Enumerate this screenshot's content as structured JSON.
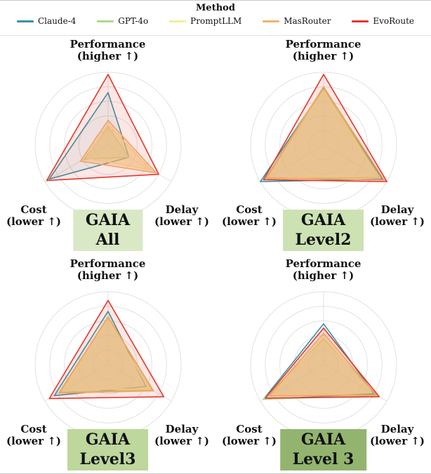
{
  "legend": {
    "title": "Method",
    "items": [
      {
        "label": "Claude-4",
        "color": "#3a93a5",
        "fill": "rgba(58,147,165,0.08)"
      },
      {
        "label": "GPT-4o",
        "color": "#b2d88b",
        "fill": "rgba(178,216,139,0.30)"
      },
      {
        "label": "PromptLLM",
        "color": "#f6ec9a",
        "fill": "rgba(246,236,154,0.40)"
      },
      {
        "label": "MasRouter",
        "color": "#f4b269",
        "fill": "rgba(244,178,105,0.35)"
      },
      {
        "label": "EvoRoute",
        "color": "#e6372c",
        "fill": "rgba(230,55,44,0.12)"
      }
    ]
  },
  "axis_labels": {
    "performance": {
      "line1": "Performance",
      "line2": "(higher ↑)"
    },
    "cost": {
      "line1": "Cost",
      "line2": "(lower ↑)"
    },
    "delay": {
      "line1": "Delay",
      "line2": "(lower ↑)"
    }
  },
  "charts": [
    {
      "title_line1": "GAIA",
      "title_line2": "All",
      "box_color": "#d9e8c5"
    },
    {
      "title_line1": "GAIA",
      "title_line2": "Level2",
      "box_color": "#cde2b2"
    },
    {
      "title_line1": "GAIA",
      "title_line2": "Level3",
      "box_color": "#bdd79c"
    },
    {
      "title_line1": "GAIA",
      "title_line2": "Level 3",
      "box_color": "#93b46e"
    }
  ],
  "chart_data": [
    {
      "type": "radar",
      "title": "GAIA All",
      "axes": [
        "Performance",
        "Delay",
        "Cost"
      ],
      "scale": [
        0,
        1
      ],
      "grid": "circular",
      "series": [
        {
          "name": "Claude-4",
          "values": [
            0.72,
            0.33,
            0.93
          ]
        },
        {
          "name": "GPT-4o",
          "values": [
            0.25,
            0.33,
            0.38
          ]
        },
        {
          "name": "PromptLLM",
          "values": [
            0.28,
            0.68,
            0.35
          ]
        },
        {
          "name": "MasRouter",
          "values": [
            0.34,
            0.76,
            0.44
          ]
        },
        {
          "name": "EvoRoute",
          "values": [
            0.97,
            0.8,
            0.97
          ]
        }
      ]
    },
    {
      "type": "radar",
      "title": "GAIA Level2",
      "axes": [
        "Performance",
        "Delay",
        "Cost"
      ],
      "scale": [
        0,
        1
      ],
      "grid": "circular",
      "series": [
        {
          "name": "Claude-4",
          "values": [
            0.78,
            0.93,
            1.0
          ]
        },
        {
          "name": "GPT-4o",
          "values": [
            0.8,
            0.88,
            0.93
          ]
        },
        {
          "name": "PromptLLM",
          "values": [
            0.76,
            0.86,
            0.9
          ]
        },
        {
          "name": "MasRouter",
          "values": [
            0.8,
            0.96,
            0.9
          ]
        },
        {
          "name": "EvoRoute",
          "values": [
            0.97,
            1.0,
            0.95
          ]
        }
      ]
    },
    {
      "type": "radar",
      "title": "GAIA Level3",
      "axes": [
        "Performance",
        "Delay",
        "Cost"
      ],
      "scale": [
        0,
        1
      ],
      "grid": "circular",
      "series": [
        {
          "name": "Claude-4",
          "values": [
            0.73,
            0.6,
            0.85
          ]
        },
        {
          "name": "GPT-4o",
          "values": [
            0.66,
            0.7,
            0.76
          ]
        },
        {
          "name": "PromptLLM",
          "values": [
            0.6,
            0.66,
            0.7
          ]
        },
        {
          "name": "MasRouter",
          "values": [
            0.65,
            0.72,
            0.78
          ]
        },
        {
          "name": "EvoRoute",
          "values": [
            0.88,
            0.88,
            0.93
          ]
        }
      ]
    },
    {
      "type": "radar",
      "title": "GAIA Level 3",
      "axes": [
        "Performance",
        "Delay",
        "Cost"
      ],
      "scale": [
        0,
        1
      ],
      "grid": "circular",
      "series": [
        {
          "name": "Claude-4",
          "values": [
            0.56,
            0.8,
            0.95
          ]
        },
        {
          "name": "GPT-4o",
          "values": [
            0.35,
            0.85,
            0.95
          ]
        },
        {
          "name": "PromptLLM",
          "values": [
            0.38,
            0.75,
            0.82
          ]
        },
        {
          "name": "MasRouter",
          "values": [
            0.43,
            0.83,
            0.86
          ]
        },
        {
          "name": "EvoRoute",
          "values": [
            0.5,
            0.88,
            0.92
          ]
        }
      ]
    }
  ]
}
